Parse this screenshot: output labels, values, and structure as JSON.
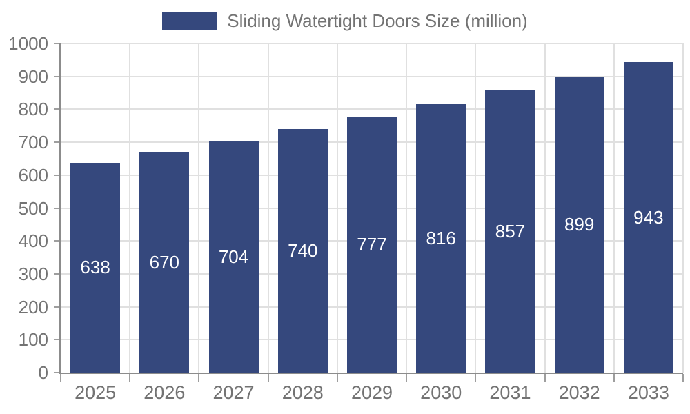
{
  "chart_data": {
    "type": "bar",
    "title": "",
    "legend_label": "Sliding Watertight Doors Size (million)",
    "legend_position": "top",
    "categories": [
      "2025",
      "2026",
      "2027",
      "2028",
      "2029",
      "2030",
      "2031",
      "2032",
      "2033"
    ],
    "values": [
      638,
      670,
      704,
      740,
      777,
      816,
      857,
      899,
      943
    ],
    "xlabel": "",
    "ylabel": "",
    "ylim": [
      0,
      1000
    ],
    "ytick_step": 100,
    "ytick_labels": [
      "0",
      "100",
      "200",
      "300",
      "400",
      "500",
      "600",
      "700",
      "800",
      "900",
      "1000"
    ],
    "grid": true,
    "colors": {
      "bar": "#35487d",
      "bar_label": "#ffffff",
      "axis_text": "#737373",
      "gridline": "#e0e0e0",
      "axis_line": "#8c8c8c",
      "tick_mark": "#9e9e9e",
      "background": "#ffffff"
    }
  }
}
